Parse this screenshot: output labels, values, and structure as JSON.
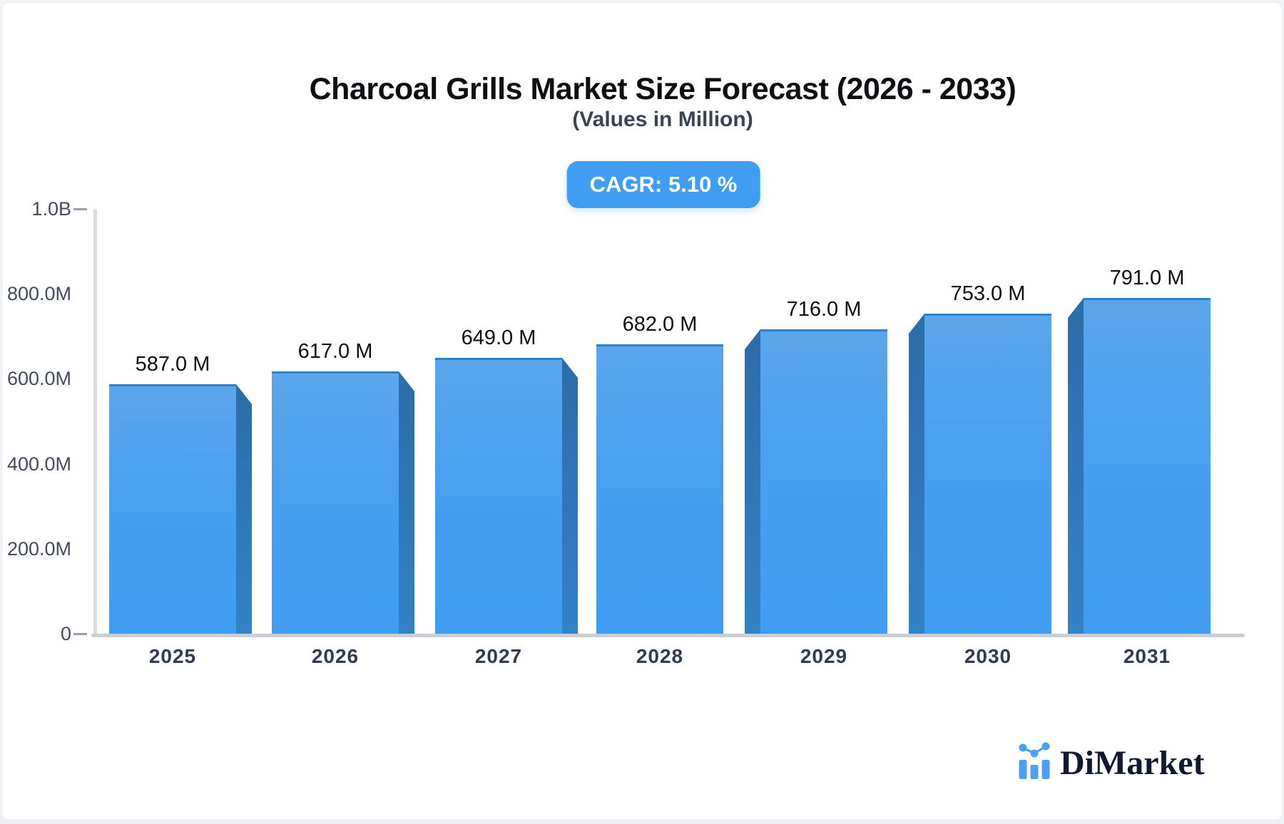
{
  "header": {
    "title": "Charcoal Grills Market Size Forecast (2026 - 2033)",
    "subtitle": "(Values in Million)",
    "cagr_badge": "CAGR: 5.10 %"
  },
  "chart_data": {
    "type": "bar",
    "title": "Charcoal Grills Market Size Forecast (2026 - 2033)",
    "subtitle": "(Values in Million)",
    "categories": [
      "2025",
      "2026",
      "2027",
      "2028",
      "2029",
      "2030",
      "2031"
    ],
    "values": [
      587,
      617,
      649,
      682,
      716,
      753,
      791
    ],
    "bar_labels": [
      "587.0 M",
      "617.0 M",
      "649.0 M",
      "682.0 M",
      "716.0 M",
      "753.0 M",
      "791.0 M"
    ],
    "xlabel": "",
    "ylabel": "",
    "ylim": [
      0,
      1000
    ],
    "yticks": [
      {
        "label": "1.0B",
        "value": 1000,
        "dash": true
      },
      {
        "label": "800.0M",
        "value": 800,
        "dash": false
      },
      {
        "label": "600.0M",
        "value": 600,
        "dash": false
      },
      {
        "label": "400.0M",
        "value": 400,
        "dash": false
      },
      {
        "label": "200.0M",
        "value": 200,
        "dash": false
      },
      {
        "label": "0",
        "value": 0,
        "dash": true
      }
    ],
    "grid": false,
    "legend": false,
    "cagr": "5.10 %",
    "colors": {
      "bar_face_top": "#5aa6eb",
      "bar_face_bottom": "#3f9df2",
      "bar_side": "#2d75b3",
      "bar_top_edge": "#2f81c5",
      "badge_bg": "#3f9ef2",
      "axis_line": "#dcdee4",
      "baseline": "#c9cdd4",
      "tick_text": "#424c5e",
      "value_text": "#0d0e10",
      "category_text": "#313c4e"
    }
  },
  "branding": {
    "name": "DiMarket",
    "icon": "mini-bar-chart-with-trend-dots",
    "icon_color": "#4aa0f4",
    "text_color": "#111a2e"
  }
}
